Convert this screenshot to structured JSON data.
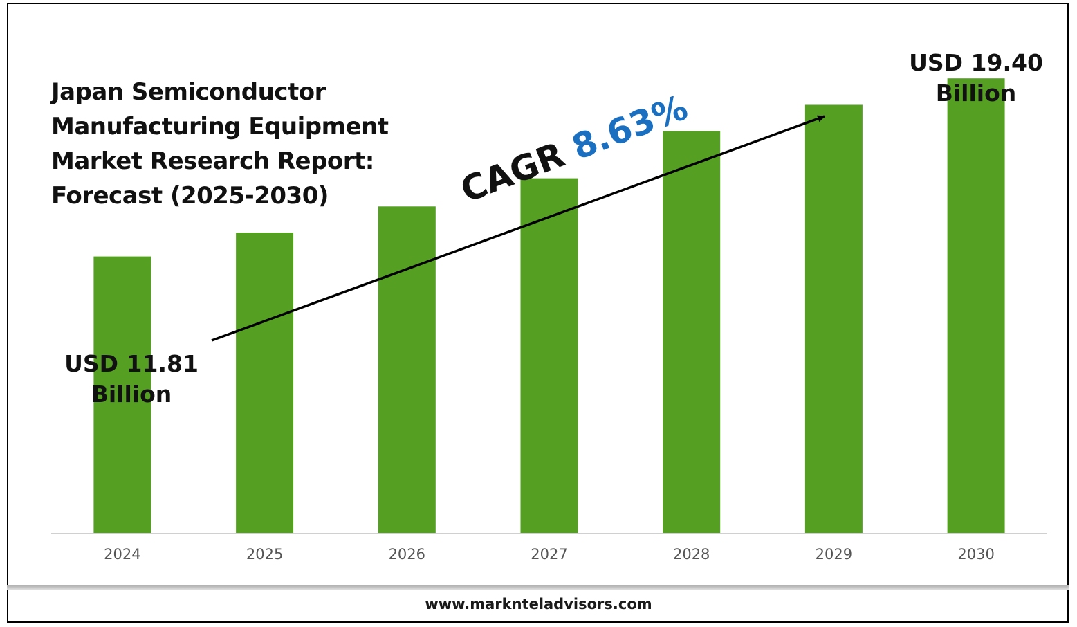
{
  "chart_data": {
    "type": "bar",
    "title": "Japan Semiconductor Manufacturing Equipment Market Research Report: Forecast (2025-2030)",
    "title_lines": [
      "Japan Semiconductor",
      "Manufacturing Equipment",
      "Market Research Report:",
      "Forecast (2025-2030)"
    ],
    "categories": [
      "2024",
      "2025",
      "2026",
      "2027",
      "2028",
      "2029",
      "2030"
    ],
    "values": [
      11.81,
      12.83,
      13.94,
      15.14,
      17.15,
      18.27,
      19.4
    ],
    "unit": "USD Billion",
    "ylim": [
      0,
      21.5
    ],
    "grid": false,
    "bar_color": "#55a022",
    "annotations": {
      "start_label": [
        "USD 11.81",
        "Billion"
      ],
      "end_label": [
        "USD 19.40",
        "Billion"
      ],
      "cagr_prefix": "CAGR",
      "cagr_value": "8.63%",
      "cagr_color": "#1a6fc0"
    }
  },
  "footer": {
    "url": "www.marknteladvisors.com"
  }
}
